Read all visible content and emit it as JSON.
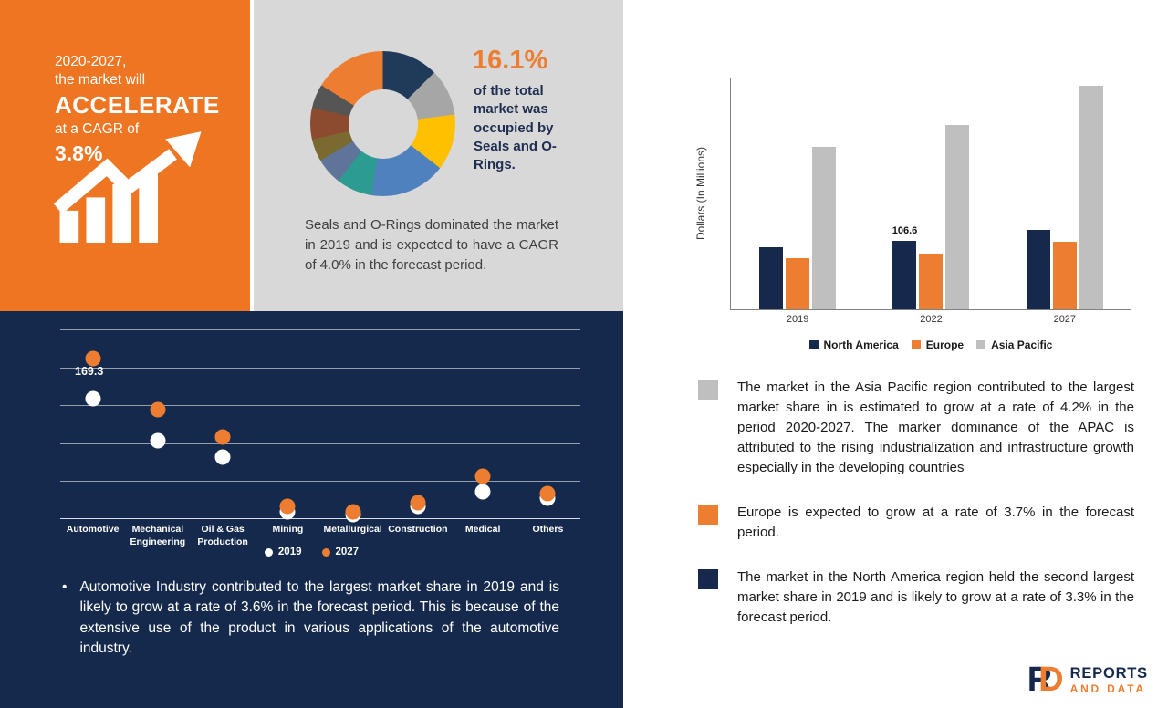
{
  "colors": {
    "panel_orange": "#EE7623",
    "panel_gray": "#D8D8D8",
    "panel_navy": "#14294B",
    "accent_orange": "#ED7D31",
    "accent_navy": "#16294C",
    "accent_gray": "#BFBFBF"
  },
  "cagr_panel": {
    "line1": "2020-2027,",
    "line2": "the market will",
    "accelerate": "ACCELERATE",
    "line3": "at a CAGR of",
    "value": "3.8%"
  },
  "product_panel": {
    "share_pct": "16.1%",
    "share_desc": "of the total market was occupied by Seals and O-Rings.",
    "body": "Seals and O-Rings dominated the market in 2019 and is expected to have a CAGR of 4.0% in the forecast period."
  },
  "industry_panel": {
    "bullet_marker": "•",
    "bullet": "Automotive Industry contributed to the largest market share in 2019 and is likely to grow at a rate of 3.6% in the forecast period. This is because of the extensive use of the product in various applications of the automotive industry."
  },
  "regional_panel": {
    "notes": [
      {
        "color": "#BFBFBF",
        "text": "The market in the Asia Pacific region contributed to the largest market share in is estimated to grow at a rate of 4.2% in the period 2020-2027. The marker dominance of the APAC is attributed to the rising industrialization and infrastructure growth especially in the developing countries"
      },
      {
        "color": "#ED7D31",
        "text": "Europe is expected to grow at a rate of 3.7% in the forecast period."
      },
      {
        "color": "#16294C",
        "text": "The market in the North America region held the second largest market share in 2019 and is likely to grow at a rate of 3.3% in the forecast period."
      }
    ]
  },
  "logo": {
    "mark_r": "R",
    "mark_d": "D",
    "line1": "REPORTS",
    "line2": "AND DATA"
  },
  "chart_data": [
    {
      "type": "pie",
      "subtype": "donut",
      "highlight": {
        "label": "Seals and O-Rings",
        "value_pct": 16.1
      },
      "segments": [
        {
          "label": "",
          "value": 12.5,
          "color": "#203A5A"
        },
        {
          "label": "",
          "value": 10.5,
          "color": "#A6A6A6"
        },
        {
          "label": "",
          "value": 12.5,
          "color": "#FFC000"
        },
        {
          "label": "",
          "value": 17.0,
          "color": "#4E81BD"
        },
        {
          "label": "",
          "value": 8.0,
          "color": "#2C9C91"
        },
        {
          "label": "",
          "value": 6.0,
          "color": "#5E7599"
        },
        {
          "label": "",
          "value": 5.0,
          "color": "#7A6A2F"
        },
        {
          "label": "",
          "value": 7.0,
          "color": "#8C4A2F"
        },
        {
          "label": "",
          "value": 5.4,
          "color": "#555555"
        },
        {
          "label": "Seals and O-Rings",
          "value": 16.1,
          "color": "#ED7D31"
        }
      ]
    },
    {
      "type": "scatter",
      "categories": [
        "Automotive",
        "Mechanical Engineering",
        "Oil & Gas Production",
        "Mining",
        "Metallurgical",
        "Construction",
        "Medical",
        "Others"
      ],
      "series": [
        {
          "name": "2019",
          "color": "#FFFFFF",
          "values": [
            127,
            83,
            65,
            8,
            5,
            13,
            29,
            22
          ]
        },
        {
          "name": "2027",
          "color": "#ED7D31",
          "values": [
            169.3,
            115,
            87,
            13,
            8,
            17,
            45,
            27
          ]
        }
      ],
      "ylim": [
        0,
        200
      ],
      "grid": true,
      "legend_position": "bottom",
      "annotation": {
        "text": "169.3",
        "category": "Automotive",
        "series": "2027"
      }
    },
    {
      "type": "bar",
      "categories": [
        "2019",
        "2022",
        "2027"
      ],
      "series": [
        {
          "name": "North America",
          "color": "#16294C",
          "values": [
            97,
            106.6,
            123
          ]
        },
        {
          "name": "Europe",
          "color": "#ED7D31",
          "values": [
            79,
            87,
            105
          ]
        },
        {
          "name": "Asia Pacific",
          "color": "#BFBFBF",
          "values": [
            252,
            287,
            347
          ]
        }
      ],
      "ylabel": "Dollars (In Millions)",
      "ylim": [
        0,
        360
      ],
      "grid": false,
      "legend_position": "bottom",
      "data_labels": [
        {
          "series": "North America",
          "category": "2022",
          "text": "106.6"
        }
      ]
    }
  ]
}
